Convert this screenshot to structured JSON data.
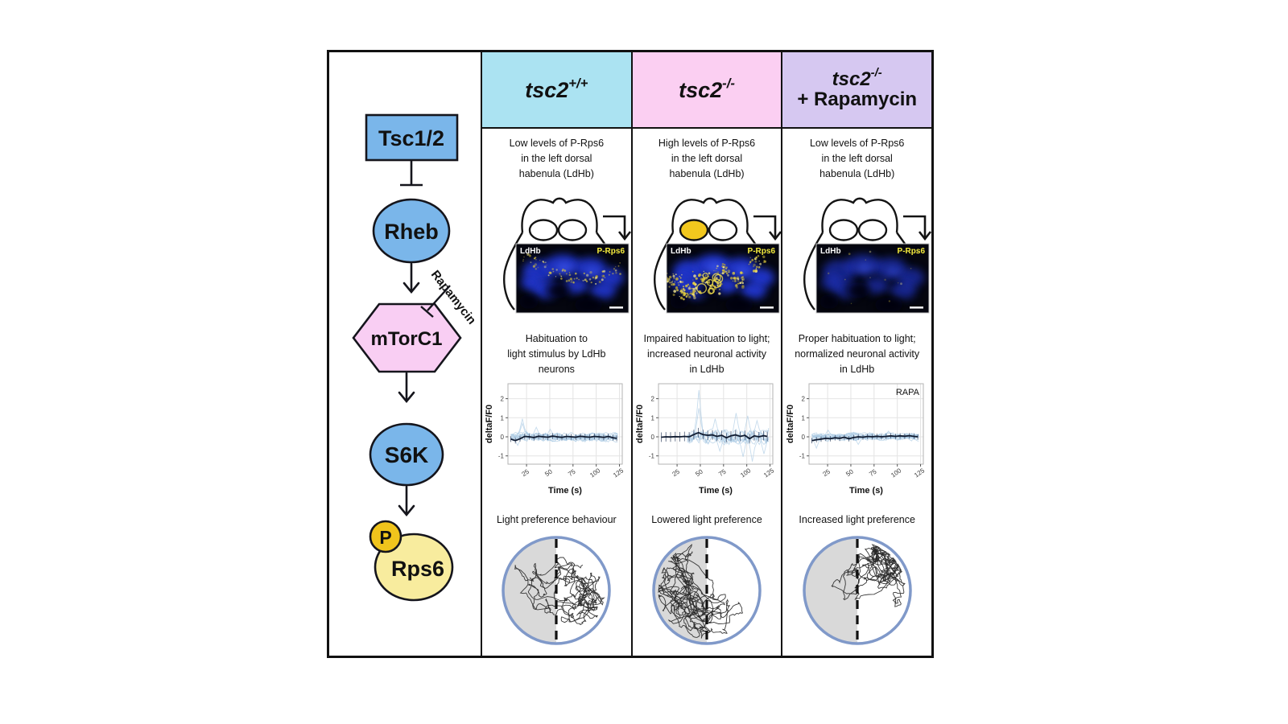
{
  "figure": {
    "border_color": "#111111",
    "pathway": {
      "tsc12": "Tsc1/2",
      "rheb": "Rheb",
      "mtorc1": "mTorC1",
      "s6k": "S6K",
      "rps6": "Rps6",
      "phospho": "P",
      "rapamycin": "Rapamycin",
      "colors": {
        "node_blue": "#7ab6ea",
        "hex_pink": "#f9cef3",
        "rps6_yellow": "#f8ec9e",
        "phospho_gold": "#f0c41c"
      }
    },
    "columns": [
      {
        "header": {
          "gene": "tsc2",
          "sup": "+/+",
          "line2": "",
          "bg": "#abe3f2"
        },
        "expression_text": "Low levels of P-Rps6\nin the left dorsal\nhabenula (LdHb)",
        "brain": {
          "left_habenula_fill": "#ffffff",
          "right_habenula_fill": "#ffffff"
        },
        "micro": {
          "ldhb_label": "LdHb",
          "prps6_label": "P-Rps6",
          "yellow_pattern": "rim",
          "yellow_count": 80,
          "blue_opacity": 0.85
        },
        "habituation_text": "Habituation to\nlight stimulus by LdHb\nneurons",
        "behaviour_label": "Light preference behaviour",
        "behaviour": {
          "zone": "right",
          "steps": 430,
          "walks": 2,
          "shaded_side": "left"
        }
      },
      {
        "header": {
          "gene": "tsc2",
          "sup": "-/-",
          "line2": "",
          "bg": "#fbcff2"
        },
        "expression_text": "High levels of P-Rps6\nin the left dorsal\nhabenula (LdHb)",
        "brain": {
          "left_habenula_fill": "#f2c81e",
          "right_habenula_fill": "#ffffff"
        },
        "micro": {
          "ldhb_label": "LdHb",
          "prps6_label": "P-Rps6",
          "yellow_pattern": "clusters",
          "yellow_count": 240,
          "blue_opacity": 0.9
        },
        "habituation_text": "Impaired habituation to light;\nincreased neuronal activity\nin LdHb",
        "behaviour_label": "Lowered light preference",
        "behaviour": {
          "zone": "left",
          "steps": 560,
          "walks": 2,
          "shaded_side": "left"
        }
      },
      {
        "header": {
          "gene": "tsc2",
          "sup": "-/-",
          "line2": "+ Rapamycin",
          "bg": "#d6c8f1"
        },
        "expression_text": "Low levels of P-Rps6\nin the left dorsal\nhabenula (LdHb)",
        "brain": {
          "left_habenula_fill": "#ffffff",
          "right_habenula_fill": "#ffffff"
        },
        "micro": {
          "ldhb_label": "LdHb",
          "prps6_label": "P-Rps6",
          "yellow_pattern": "sparse",
          "yellow_count": 14,
          "blue_opacity": 0.6
        },
        "habituation_text": "Proper habituation to light;\nnormalized neuronal activity\nin LdHb",
        "behaviour_label": "Increased light preference",
        "behaviour": {
          "zone": "topright",
          "steps": 440,
          "walks": 2,
          "shaded_side": "left"
        }
      }
    ]
  },
  "chart_data": [
    {
      "type": "line",
      "title": "",
      "xlabel": "Time (s)",
      "ylabel": "deltaF/F0",
      "x_ticks": [
        25,
        50,
        75,
        100,
        125
      ],
      "y_ticks": [
        -1,
        0,
        1,
        2
      ],
      "xlim": [
        5,
        128
      ],
      "ylim": [
        -1.35,
        2.7
      ],
      "annotation": "",
      "legend": "individual LdHb neuron traces (light blue) with mean +/- error (dark)",
      "error": 0.15,
      "mean": [
        [
          8,
          -0.12
        ],
        [
          13,
          -0.2
        ],
        [
          18,
          -0.1
        ],
        [
          23,
          0.02
        ],
        [
          28,
          0
        ],
        [
          33,
          -0.04
        ],
        [
          38,
          0.03
        ],
        [
          43,
          0
        ],
        [
          48,
          -0.02
        ],
        [
          53,
          0.04
        ],
        [
          58,
          0
        ],
        [
          63,
          -0.03
        ],
        [
          68,
          0.02
        ],
        [
          73,
          0
        ],
        [
          78,
          -0.02
        ],
        [
          83,
          0.03
        ],
        [
          88,
          0
        ],
        [
          93,
          -0.02
        ],
        [
          98,
          0.02
        ],
        [
          103,
          0
        ],
        [
          108,
          -0.03
        ],
        [
          113,
          0.02
        ],
        [
          118,
          -0.05
        ],
        [
          122,
          -0.08
        ]
      ],
      "traces": {
        "count": 14,
        "amp": 0.18,
        "xstart": 8,
        "spikes": [
          [
            20,
            0.95
          ],
          [
            21,
            0.7
          ],
          [
            35,
            0.5
          ],
          [
            50,
            0.4
          ],
          [
            15,
            -0.45
          ]
        ]
      }
    },
    {
      "type": "line",
      "title": "",
      "xlabel": "Time (s)",
      "ylabel": "deltaF/F0",
      "x_ticks": [
        25,
        50,
        75,
        100,
        125
      ],
      "y_ticks": [
        -1,
        0,
        1,
        2
      ],
      "xlim": [
        5,
        128
      ],
      "ylim": [
        -1.35,
        2.7
      ],
      "annotation": "",
      "legend": "individual LdHb neuron traces (light blue) with mean +/- error (dark)",
      "error": 0.25,
      "mean": [
        [
          8,
          -0.02
        ],
        [
          13,
          0
        ],
        [
          18,
          -0.01
        ],
        [
          23,
          0.01
        ],
        [
          28,
          0
        ],
        [
          33,
          0.02
        ],
        [
          38,
          0
        ],
        [
          43,
          0.12
        ],
        [
          48,
          0.22
        ],
        [
          53,
          0.12
        ],
        [
          58,
          0.08
        ],
        [
          63,
          0.1
        ],
        [
          68,
          0.02
        ],
        [
          73,
          0.08
        ],
        [
          78,
          -0.05
        ],
        [
          83,
          0.05
        ],
        [
          88,
          0.1
        ],
        [
          93,
          0.02
        ],
        [
          98,
          0.08
        ],
        [
          103,
          -0.1
        ],
        [
          108,
          0.05
        ],
        [
          113,
          0
        ],
        [
          118,
          0.06
        ],
        [
          122,
          0.02
        ]
      ],
      "traces": {
        "count": 10,
        "amp": 0.3,
        "xstart": 36,
        "spikes": [
          [
            48,
            2.45
          ],
          [
            49,
            1.5
          ],
          [
            65,
            0.95
          ],
          [
            72,
            -0.75
          ],
          [
            88,
            1.25
          ],
          [
            97,
            -1.05
          ],
          [
            101,
            1.1
          ],
          [
            107,
            -1.3
          ],
          [
            112,
            0.85
          ],
          [
            118,
            -0.9
          ]
        ]
      }
    },
    {
      "type": "line",
      "title": "",
      "xlabel": "Time (s)",
      "ylabel": "deltaF/F0",
      "x_ticks": [
        25,
        50,
        75,
        100,
        125
      ],
      "y_ticks": [
        -1,
        0,
        1,
        2
      ],
      "xlim": [
        5,
        128
      ],
      "ylim": [
        -1.35,
        2.7
      ],
      "annotation": "RAPA",
      "legend": "individual LdHb neuron traces (light blue) with mean +/- error (dark)",
      "error": 0.14,
      "mean": [
        [
          8,
          -0.2
        ],
        [
          13,
          -0.15
        ],
        [
          18,
          -0.12
        ],
        [
          23,
          -0.08
        ],
        [
          28,
          -0.1
        ],
        [
          33,
          -0.05
        ],
        [
          38,
          -0.08
        ],
        [
          43,
          -0.02
        ],
        [
          48,
          -0.1
        ],
        [
          53,
          -0.04
        ],
        [
          58,
          0
        ],
        [
          63,
          -0.02
        ],
        [
          68,
          0.02
        ],
        [
          73,
          0
        ],
        [
          78,
          0.03
        ],
        [
          83,
          0
        ],
        [
          88,
          0.02
        ],
        [
          93,
          0.05
        ],
        [
          98,
          0.02
        ],
        [
          103,
          0.05
        ],
        [
          108,
          0.03
        ],
        [
          113,
          0.06
        ],
        [
          118,
          0.02
        ],
        [
          122,
          0
        ]
      ],
      "traces": {
        "count": 14,
        "amp": 0.15,
        "xstart": 8,
        "spikes": [
          [
            14,
            -0.6
          ],
          [
            25,
            0.35
          ],
          [
            57,
            -0.4
          ],
          [
            90,
            0.3
          ]
        ]
      }
    }
  ]
}
